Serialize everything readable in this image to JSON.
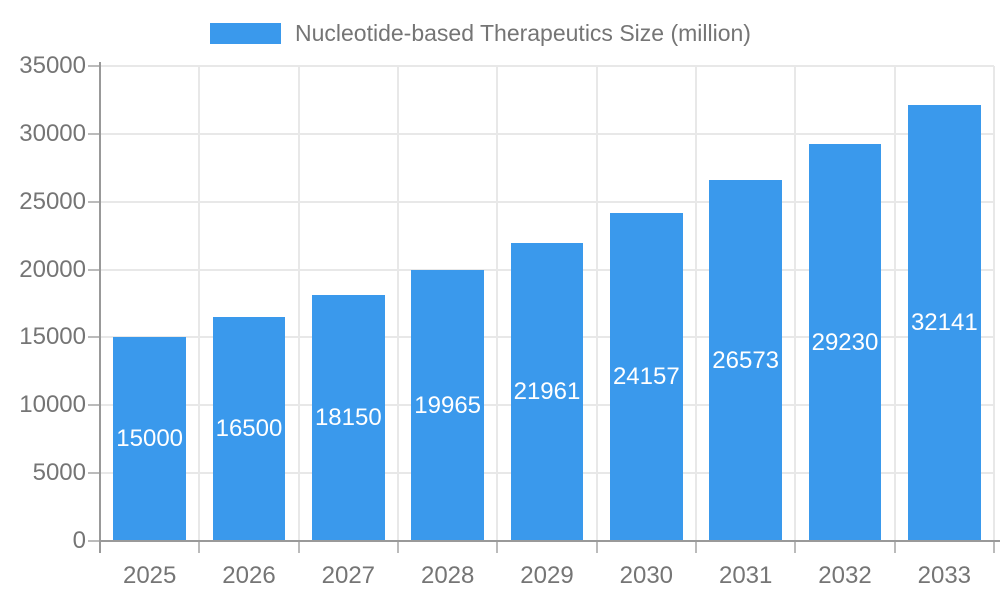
{
  "legend": {
    "label": "Nucleotide-based Therapeutics Size (million)"
  },
  "colors": {
    "bar": "#3A99EC",
    "grid": "#E8E8E8",
    "axis": "#999999",
    "tick": "#BBBBBB",
    "axis_label": "#757575",
    "bar_label": "#FFFFFF",
    "background": "#FFFFFF"
  },
  "chart_data": {
    "type": "bar",
    "title": "Nucleotide-based Therapeutics Size (million)",
    "categories": [
      "2025",
      "2026",
      "2027",
      "2028",
      "2029",
      "2030",
      "2031",
      "2032",
      "2033"
    ],
    "values": [
      15000,
      16500,
      18150,
      19965,
      21961,
      24157,
      26573,
      29230,
      32141
    ],
    "series": [
      {
        "name": "Nucleotide-based Therapeutics Size (million)",
        "values": [
          15000,
          16500,
          18150,
          19965,
          21961,
          24157,
          26573,
          29230,
          32141
        ]
      }
    ],
    "bar_value_labels": [
      "15000",
      "16500",
      "18150",
      "19965",
      "21961",
      "24157",
      "26573",
      "29230",
      "32141"
    ],
    "xlabel": "",
    "ylabel": "",
    "ylim": [
      0,
      35000
    ],
    "ytick_step": 5000,
    "ytick_labels": [
      "0",
      "5000",
      "10000",
      "15000",
      "20000",
      "25000",
      "30000",
      "35000"
    ],
    "grid": true,
    "legend_position": "top"
  }
}
